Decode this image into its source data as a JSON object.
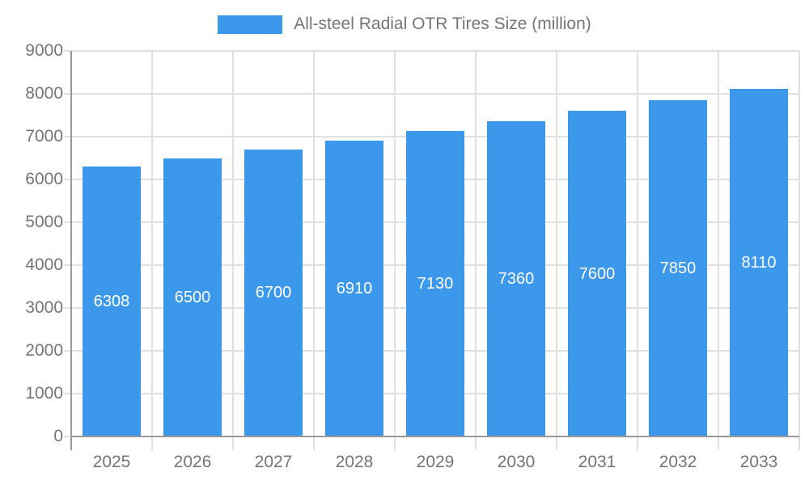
{
  "chart_data": {
    "type": "bar",
    "title": "All-steel Radial OTR Tires Size (million)",
    "categories": [
      "2025",
      "2026",
      "2027",
      "2028",
      "2029",
      "2030",
      "2031",
      "2032",
      "2033"
    ],
    "values": [
      6308,
      6500,
      6700,
      6910,
      7130,
      7360,
      7600,
      7850,
      8110
    ],
    "xlabel": "",
    "ylabel": "",
    "ylim": [
      0,
      9000
    ],
    "ytick_interval": 1000,
    "ytick_labels": [
      "0",
      "1000",
      "2000",
      "3000",
      "4000",
      "5000",
      "6000",
      "7000",
      "8000",
      "9000"
    ],
    "grid": true,
    "legend_position": "top-center",
    "data_labels": "inside-center",
    "colors": {
      "bar": "#3b98eb",
      "bar_label": "#ffffff",
      "grid": "#e0e0e0",
      "axis": "#999999",
      "tick_text": "#757575",
      "background": "#ffffff"
    }
  },
  "legend": {
    "label": "All-steel Radial OTR Tires Size (million)"
  }
}
